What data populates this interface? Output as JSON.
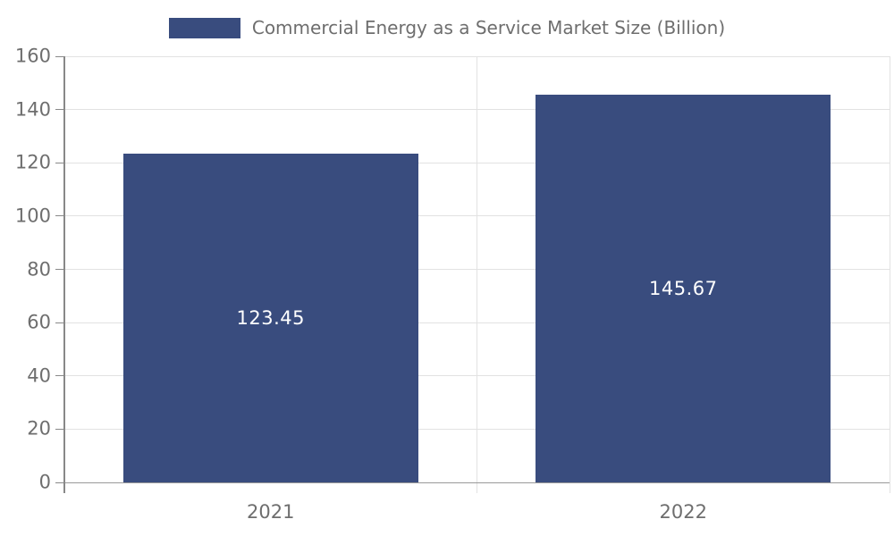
{
  "chart_data": {
    "type": "bar",
    "title": "Commercial Energy as a Service Market Size (Billion)",
    "legend": [
      "Commercial Energy as a Service Market Size (Billion)"
    ],
    "legend_position": "top-center",
    "categories": [
      "2021",
      "2022"
    ],
    "values": [
      123.45,
      145.67
    ],
    "value_labels": [
      "123.45",
      "145.67"
    ],
    "xlabel": "",
    "ylabel": "",
    "ylim": [
      0,
      160
    ],
    "yticks": [
      0,
      20,
      40,
      60,
      80,
      100,
      120,
      140,
      160
    ],
    "grid": true,
    "colors": {
      "bar": "#394C7E",
      "value_label": "#FFFFFF",
      "axis_text": "#6E6E6E",
      "gridline": "#E2E2E2",
      "axis_line": "#888888",
      "bottom_axis_line": "#999999"
    }
  }
}
